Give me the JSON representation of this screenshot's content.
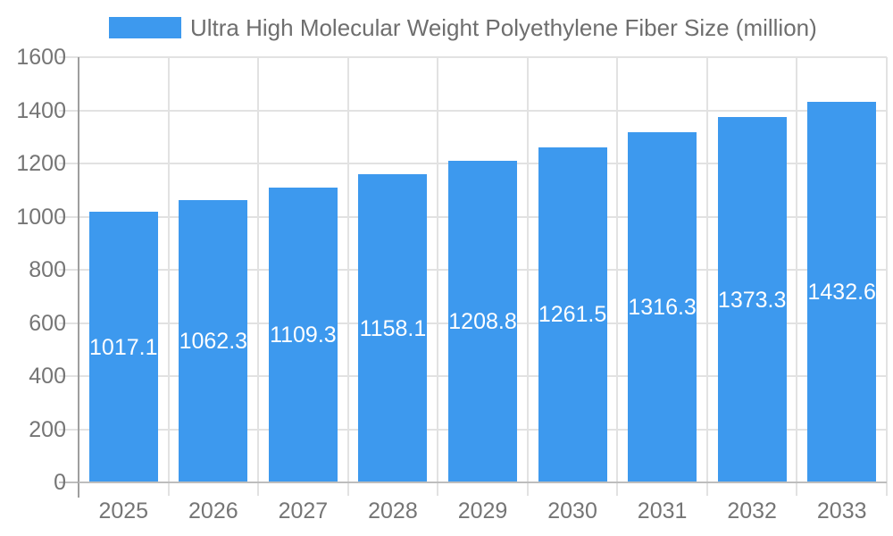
{
  "legend": {
    "swatch_color": "#3D99EE"
  },
  "chart_data": {
    "type": "bar",
    "title": "Ultra High Molecular Weight Polyethylene Fiber Size (million)",
    "legend": [
      "Ultra High Molecular Weight Polyethylene Fiber Size (million)"
    ],
    "legend_position": "top",
    "categories": [
      "2025",
      "2026",
      "2027",
      "2028",
      "2029",
      "2030",
      "2031",
      "2032",
      "2033"
    ],
    "values": [
      1017.1,
      1062.3,
      1109.3,
      1158.1,
      1208.8,
      1261.5,
      1316.3,
      1373.3,
      1432.6
    ],
    "xlabel": "",
    "ylabel": "",
    "ylim": [
      0,
      1600
    ],
    "yticks": [
      0,
      200,
      400,
      600,
      800,
      1000,
      1200,
      1400,
      1600
    ],
    "grid": true,
    "colors": {
      "bar": "#3D99EE",
      "value_label": "#ffffff",
      "axis_text": "#757575",
      "grid_line": "#e2e2e2",
      "y_axis_line": "#9e9e9e",
      "baseline": "#bdbdbd",
      "background": "#ffffff"
    }
  }
}
